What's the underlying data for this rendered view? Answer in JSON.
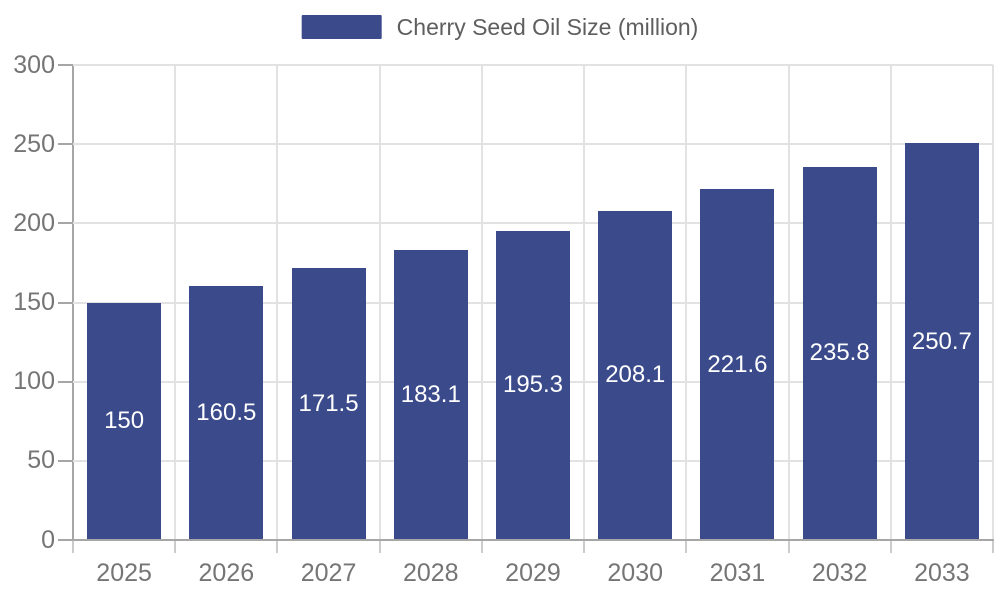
{
  "chart_data": {
    "type": "bar",
    "title": "Cherry Seed Oil Size (million)",
    "legend": {
      "label": "Cherry Seed Oil Size (million)",
      "position": "top-center"
    },
    "categories": [
      "2025",
      "2026",
      "2027",
      "2028",
      "2029",
      "2030",
      "2031",
      "2032",
      "2033"
    ],
    "series": [
      {
        "name": "Cherry Seed Oil Size (million)",
        "values": [
          150,
          160.5,
          171.5,
          183.1,
          195.3,
          208.1,
          221.6,
          235.8,
          250.7
        ]
      }
    ],
    "value_labels": [
      "150",
      "160.5",
      "171.5",
      "183.1",
      "195.3",
      "208.1",
      "221.6",
      "235.8",
      "250.7"
    ],
    "xlabel": "",
    "ylabel": "",
    "ylim": [
      0,
      300
    ],
    "yticks": [
      0,
      50,
      100,
      150,
      200,
      250,
      300
    ],
    "grid": true,
    "colors": {
      "bar": "#3a4a8a",
      "value_label": "#ffffff",
      "axis_tick_label": "#757575",
      "legend_text": "#5e5e5e",
      "gridline": "#e2e2e2",
      "axis_line": "#a6a6a6",
      "x_tick_mark": "#cccccc",
      "y_tick_mark": "#a6a6a6",
      "background": "#ffffff"
    }
  }
}
